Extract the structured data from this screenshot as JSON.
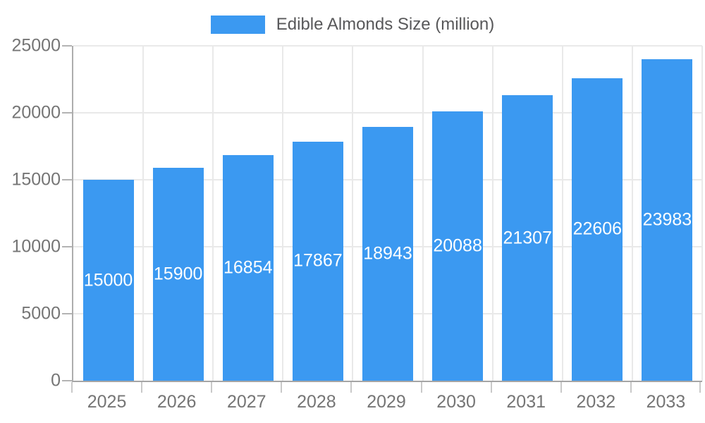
{
  "legend": {
    "label": "Edible Almonds Size (million)"
  },
  "colors": {
    "bar": "#3b99f1",
    "gridline": "#e9e9e9",
    "axis_line": "#a8a8a8",
    "tick_label_text": "#757575",
    "legend_text": "#58585a",
    "value_label_text": "#ffffff"
  },
  "chart_data": {
    "type": "bar",
    "title": "Edible Almonds Size (million)",
    "categories": [
      "2025",
      "2026",
      "2027",
      "2028",
      "2029",
      "2030",
      "2031",
      "2032",
      "2033"
    ],
    "values": [
      15000,
      15900,
      16854,
      17867,
      18943,
      20088,
      21307,
      22606,
      23983
    ],
    "value_labels": [
      "15000",
      "15900",
      "16854",
      "17867",
      "18943",
      "20088",
      "21307",
      "22606",
      "23983"
    ],
    "xlabel": "",
    "ylabel": "",
    "ylim": [
      0,
      25000
    ],
    "yticks": [
      0,
      5000,
      10000,
      15000,
      20000,
      25000
    ],
    "grid": true,
    "legend_position": "top",
    "value_label_position": "inside-center"
  }
}
